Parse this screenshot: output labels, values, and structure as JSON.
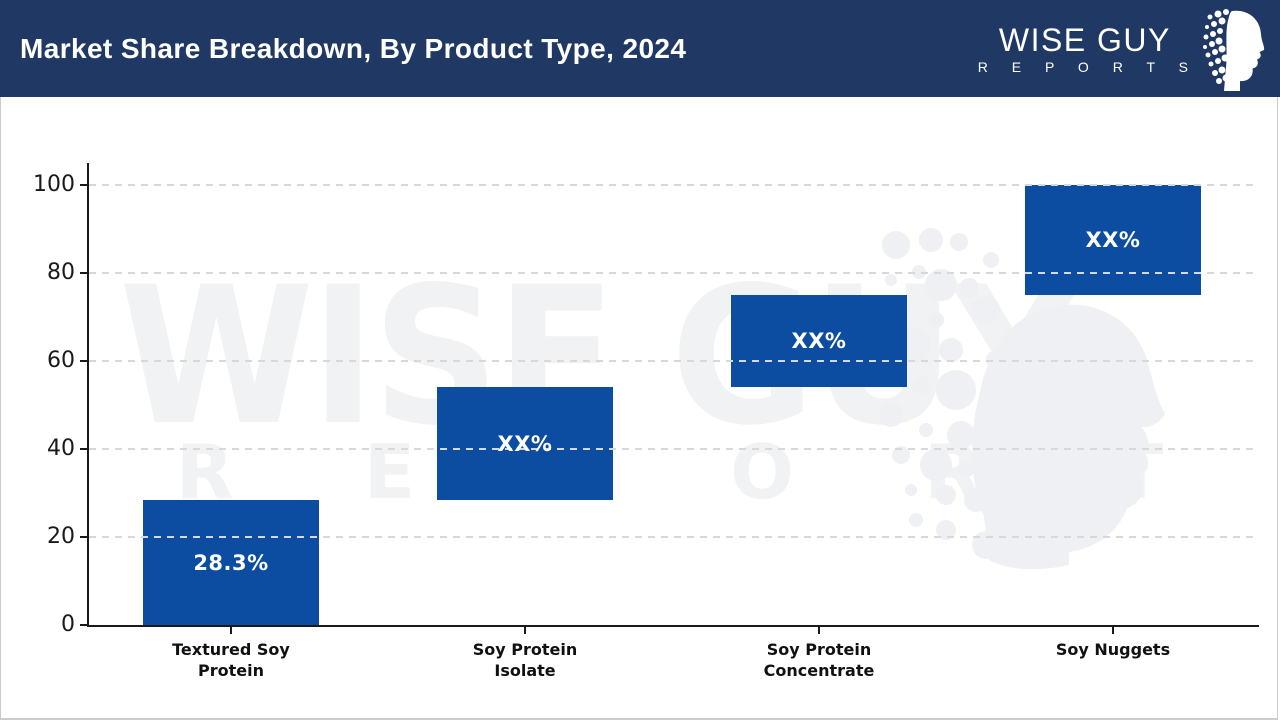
{
  "header": {
    "title": "Market Share Breakdown, By Product Type, 2024",
    "logo": {
      "name_line": "WISE GUY",
      "sub_line": "R E P O R T S"
    }
  },
  "watermark": {
    "name_line": "WISE GUY",
    "sub_line": "R E P O R T S"
  },
  "colors": {
    "header_bg": "#1f3864",
    "header_text": "#ffffff",
    "bar_fill": "#0c4da2",
    "bar_label": "#ffffff",
    "axis": "#1a1a1a",
    "grid": "#d8d8d8",
    "watermark_text": "#f1f2f4",
    "watermark_face": "#eef0f3",
    "frame_border": "#cccccc"
  },
  "chart_data": {
    "type": "bar",
    "variant": "waterfall",
    "title": "Market Share Breakdown, By Product Type, 2024",
    "xlabel": "",
    "ylabel": "",
    "ylim": [
      0,
      105
    ],
    "yticks": [
      0,
      20,
      40,
      60,
      80,
      100
    ],
    "grid": "horizontal-dashed",
    "legend": "none",
    "categories": [
      [
        "Textured Soy",
        "Protein"
      ],
      [
        "Soy Protein",
        "Isolate"
      ],
      [
        "Soy Protein",
        "Concentrate"
      ],
      [
        "Soy Nuggets"
      ]
    ],
    "segments": [
      {
        "category": "Textured Soy Protein",
        "start": 0,
        "end": 28.3,
        "value_label": "28.3%"
      },
      {
        "category": "Soy Protein Isolate",
        "start": 28.3,
        "end": 54,
        "value_label": "XX%"
      },
      {
        "category": "Soy Protein Concentrate",
        "start": 54,
        "end": 75,
        "value_label": "XX%"
      },
      {
        "category": "Soy Nuggets",
        "start": 75,
        "end": 100,
        "value_label": "XX%"
      }
    ]
  }
}
